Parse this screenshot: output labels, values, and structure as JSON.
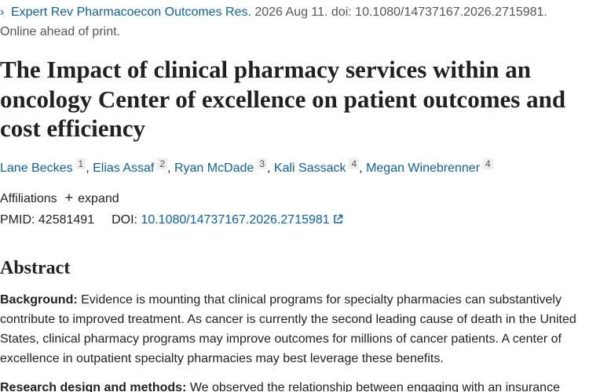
{
  "citation": {
    "journal": "Expert Rev Pharmacoecon Outcomes Res.",
    "details": "2026 Aug 11. doi: 10.1080/14737167.2026.2715981.",
    "status": "Online ahead of print."
  },
  "title": "The Impact of clinical pharmacy services within an oncology Center of excellence on patient outcomes and cost efficiency",
  "authors": [
    {
      "name": "Lane Beckes",
      "affiliation": "1"
    },
    {
      "name": "Elias Assaf",
      "affiliation": "2"
    },
    {
      "name": "Ryan McDade",
      "affiliation": "3"
    },
    {
      "name": "Kali Sassack",
      "affiliation": "4"
    },
    {
      "name": "Megan Winebrenner",
      "affiliation": "4"
    }
  ],
  "affiliations": {
    "label": "Affiliations",
    "toggle": "expand"
  },
  "identifiers": {
    "pmid_label": "PMID:",
    "pmid": "42581491",
    "doi_label": "DOI:",
    "doi": "10.1080/14737167.2026.2715981"
  },
  "abstract": {
    "heading": "Abstract",
    "sections": [
      {
        "label": "Background:",
        "text": "Evidence is mounting that clinical programs for specialty pharmacies can substantively contribute to improved treatment. As cancer is currently the second leading cause of death in the United States, clinical pharmacy programs may improve outcomes for millions of cancer patients. A center of excellence in outpatient specialty pharmacies may best leverage these benefits."
      },
      {
        "label": "Research design and methods:",
        "text": "We observed the relationship between engaging with an insurance"
      }
    ]
  }
}
